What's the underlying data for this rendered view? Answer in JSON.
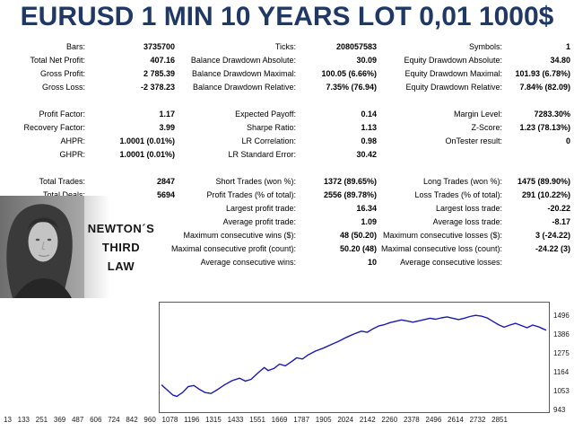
{
  "title": "EURUSD 1 MIN 10 YEARS LOT 0,01 1000$",
  "colors": {
    "title": "#1f3864",
    "line": "#1a1ab0",
    "text": "#000000",
    "axis_text": "#1a1a1a"
  },
  "overlay": {
    "lines": [
      "NEWTON´S",
      "THIRD",
      "LAW"
    ]
  },
  "stats": {
    "rows": [
      [
        [
          "Bars:",
          "3735700"
        ],
        [
          "Ticks:",
          "208057583"
        ],
        [
          "Symbols:",
          "1"
        ]
      ],
      [
        [
          "Total Net Profit:",
          "407.16"
        ],
        [
          "Balance Drawdown Absolute:",
          "30.09"
        ],
        [
          "Equity Drawdown Absolute:",
          "34.80"
        ]
      ],
      [
        [
          "Gross Profit:",
          "2 785.39"
        ],
        [
          "Balance Drawdown Maximal:",
          "100.05 (6.66%)"
        ],
        [
          "Equity Drawdown Maximal:",
          "101.93 (6.78%)"
        ]
      ],
      [
        [
          "Gross Loss:",
          "-2 378.23"
        ],
        [
          "Balance Drawdown Relative:",
          "7.35% (76.94)"
        ],
        [
          "Equity Drawdown Relative:",
          "7.84% (82.09)"
        ]
      ],
      null,
      [
        [
          "Profit Factor:",
          "1.17"
        ],
        [
          "Expected Payoff:",
          "0.14"
        ],
        [
          "Margin Level:",
          "7283.30%"
        ]
      ],
      [
        [
          "Recovery Factor:",
          "3.99"
        ],
        [
          "Sharpe Ratio:",
          "1.13"
        ],
        [
          "Z-Score:",
          "1.23 (78.13%)"
        ]
      ],
      [
        [
          "AHPR:",
          "1.0001 (0.01%)"
        ],
        [
          "LR Correlation:",
          "0.98"
        ],
        [
          "OnTester result:",
          "0"
        ]
      ],
      [
        [
          "GHPR:",
          "1.0001 (0.01%)"
        ],
        [
          "LR Standard Error:",
          "30.42"
        ],
        null
      ],
      null,
      [
        [
          "Total Trades:",
          "2847"
        ],
        [
          "Short Trades (won %):",
          "1372 (89.65%)"
        ],
        [
          "Long Trades (won %):",
          "1475 (89.90%)"
        ]
      ],
      [
        [
          "Total Deals:",
          "5694"
        ],
        [
          "Profit Trades (% of total):",
          "2556 (89.78%)"
        ],
        [
          "Loss Trades (% of total):",
          "291 (10.22%)"
        ]
      ],
      [
        null,
        [
          "Largest profit trade:",
          "16.34"
        ],
        [
          "Largest loss trade:",
          "-20.22"
        ]
      ],
      [
        null,
        [
          "Average profit trade:",
          "1.09"
        ],
        [
          "Average loss trade:",
          "-8.17"
        ]
      ],
      [
        null,
        [
          "Maximum consecutive wins ($):",
          "48 (50.20)"
        ],
        [
          "Maximum consecutive losses ($):",
          "3 (-24.22)"
        ]
      ],
      [
        null,
        [
          "Maximal consecutive profit (count):",
          "50.20 (48)"
        ],
        [
          "Maximal consecutive loss (count):",
          "-24.22 (3)"
        ]
      ],
      [
        null,
        [
          "Average consecutive wins:",
          "10"
        ],
        [
          "Average consecutive losses:",
          ""
        ]
      ]
    ]
  },
  "chart_data": {
    "type": "line",
    "series_name": "Balance",
    "xlabel": "",
    "ylabel": "",
    "grid": false,
    "legend": "none",
    "xlim_visible": [
      820,
      2865
    ],
    "ylim": [
      925,
      1570
    ],
    "x": [
      830,
      860,
      890,
      910,
      940,
      970,
      1000,
      1030,
      1060,
      1090,
      1120,
      1160,
      1200,
      1240,
      1270,
      1300,
      1340,
      1370,
      1390,
      1420,
      1450,
      1480,
      1510,
      1540,
      1570,
      1600,
      1640,
      1680,
      1720,
      1760,
      1800,
      1840,
      1880,
      1910,
      1940,
      1970,
      2000,
      2030,
      2060,
      2090,
      2120,
      2150,
      2180,
      2210,
      2240,
      2270,
      2300,
      2330,
      2360,
      2390,
      2420,
      2450,
      2480,
      2510,
      2540,
      2570,
      2600,
      2630,
      2660,
      2690,
      2720,
      2750,
      2780,
      2810,
      2830,
      2851
    ],
    "balance": [
      1085,
      1055,
      1025,
      1018,
      1040,
      1075,
      1082,
      1058,
      1040,
      1035,
      1055,
      1085,
      1110,
      1125,
      1108,
      1118,
      1160,
      1188,
      1170,
      1182,
      1208,
      1198,
      1220,
      1245,
      1238,
      1262,
      1285,
      1302,
      1322,
      1342,
      1365,
      1385,
      1402,
      1395,
      1415,
      1432,
      1440,
      1452,
      1460,
      1468,
      1462,
      1455,
      1462,
      1470,
      1478,
      1472,
      1480,
      1486,
      1478,
      1470,
      1478,
      1488,
      1495,
      1490,
      1480,
      1460,
      1440,
      1425,
      1438,
      1448,
      1435,
      1422,
      1438,
      1428,
      1418,
      1407
    ],
    "x_tick_labels": [
      "13",
      "133",
      "251",
      "369",
      "487",
      "606",
      "724",
      "842",
      "960",
      "1078",
      "1196",
      "1315",
      "1433",
      "1551",
      "1669",
      "1787",
      "1905",
      "2024",
      "2142",
      "2260",
      "2378",
      "2496",
      "2614",
      "2732",
      "2851"
    ],
    "y_tick_labels": [
      "1496",
      "1386",
      "1275",
      "1164",
      "1053",
      "943"
    ]
  }
}
